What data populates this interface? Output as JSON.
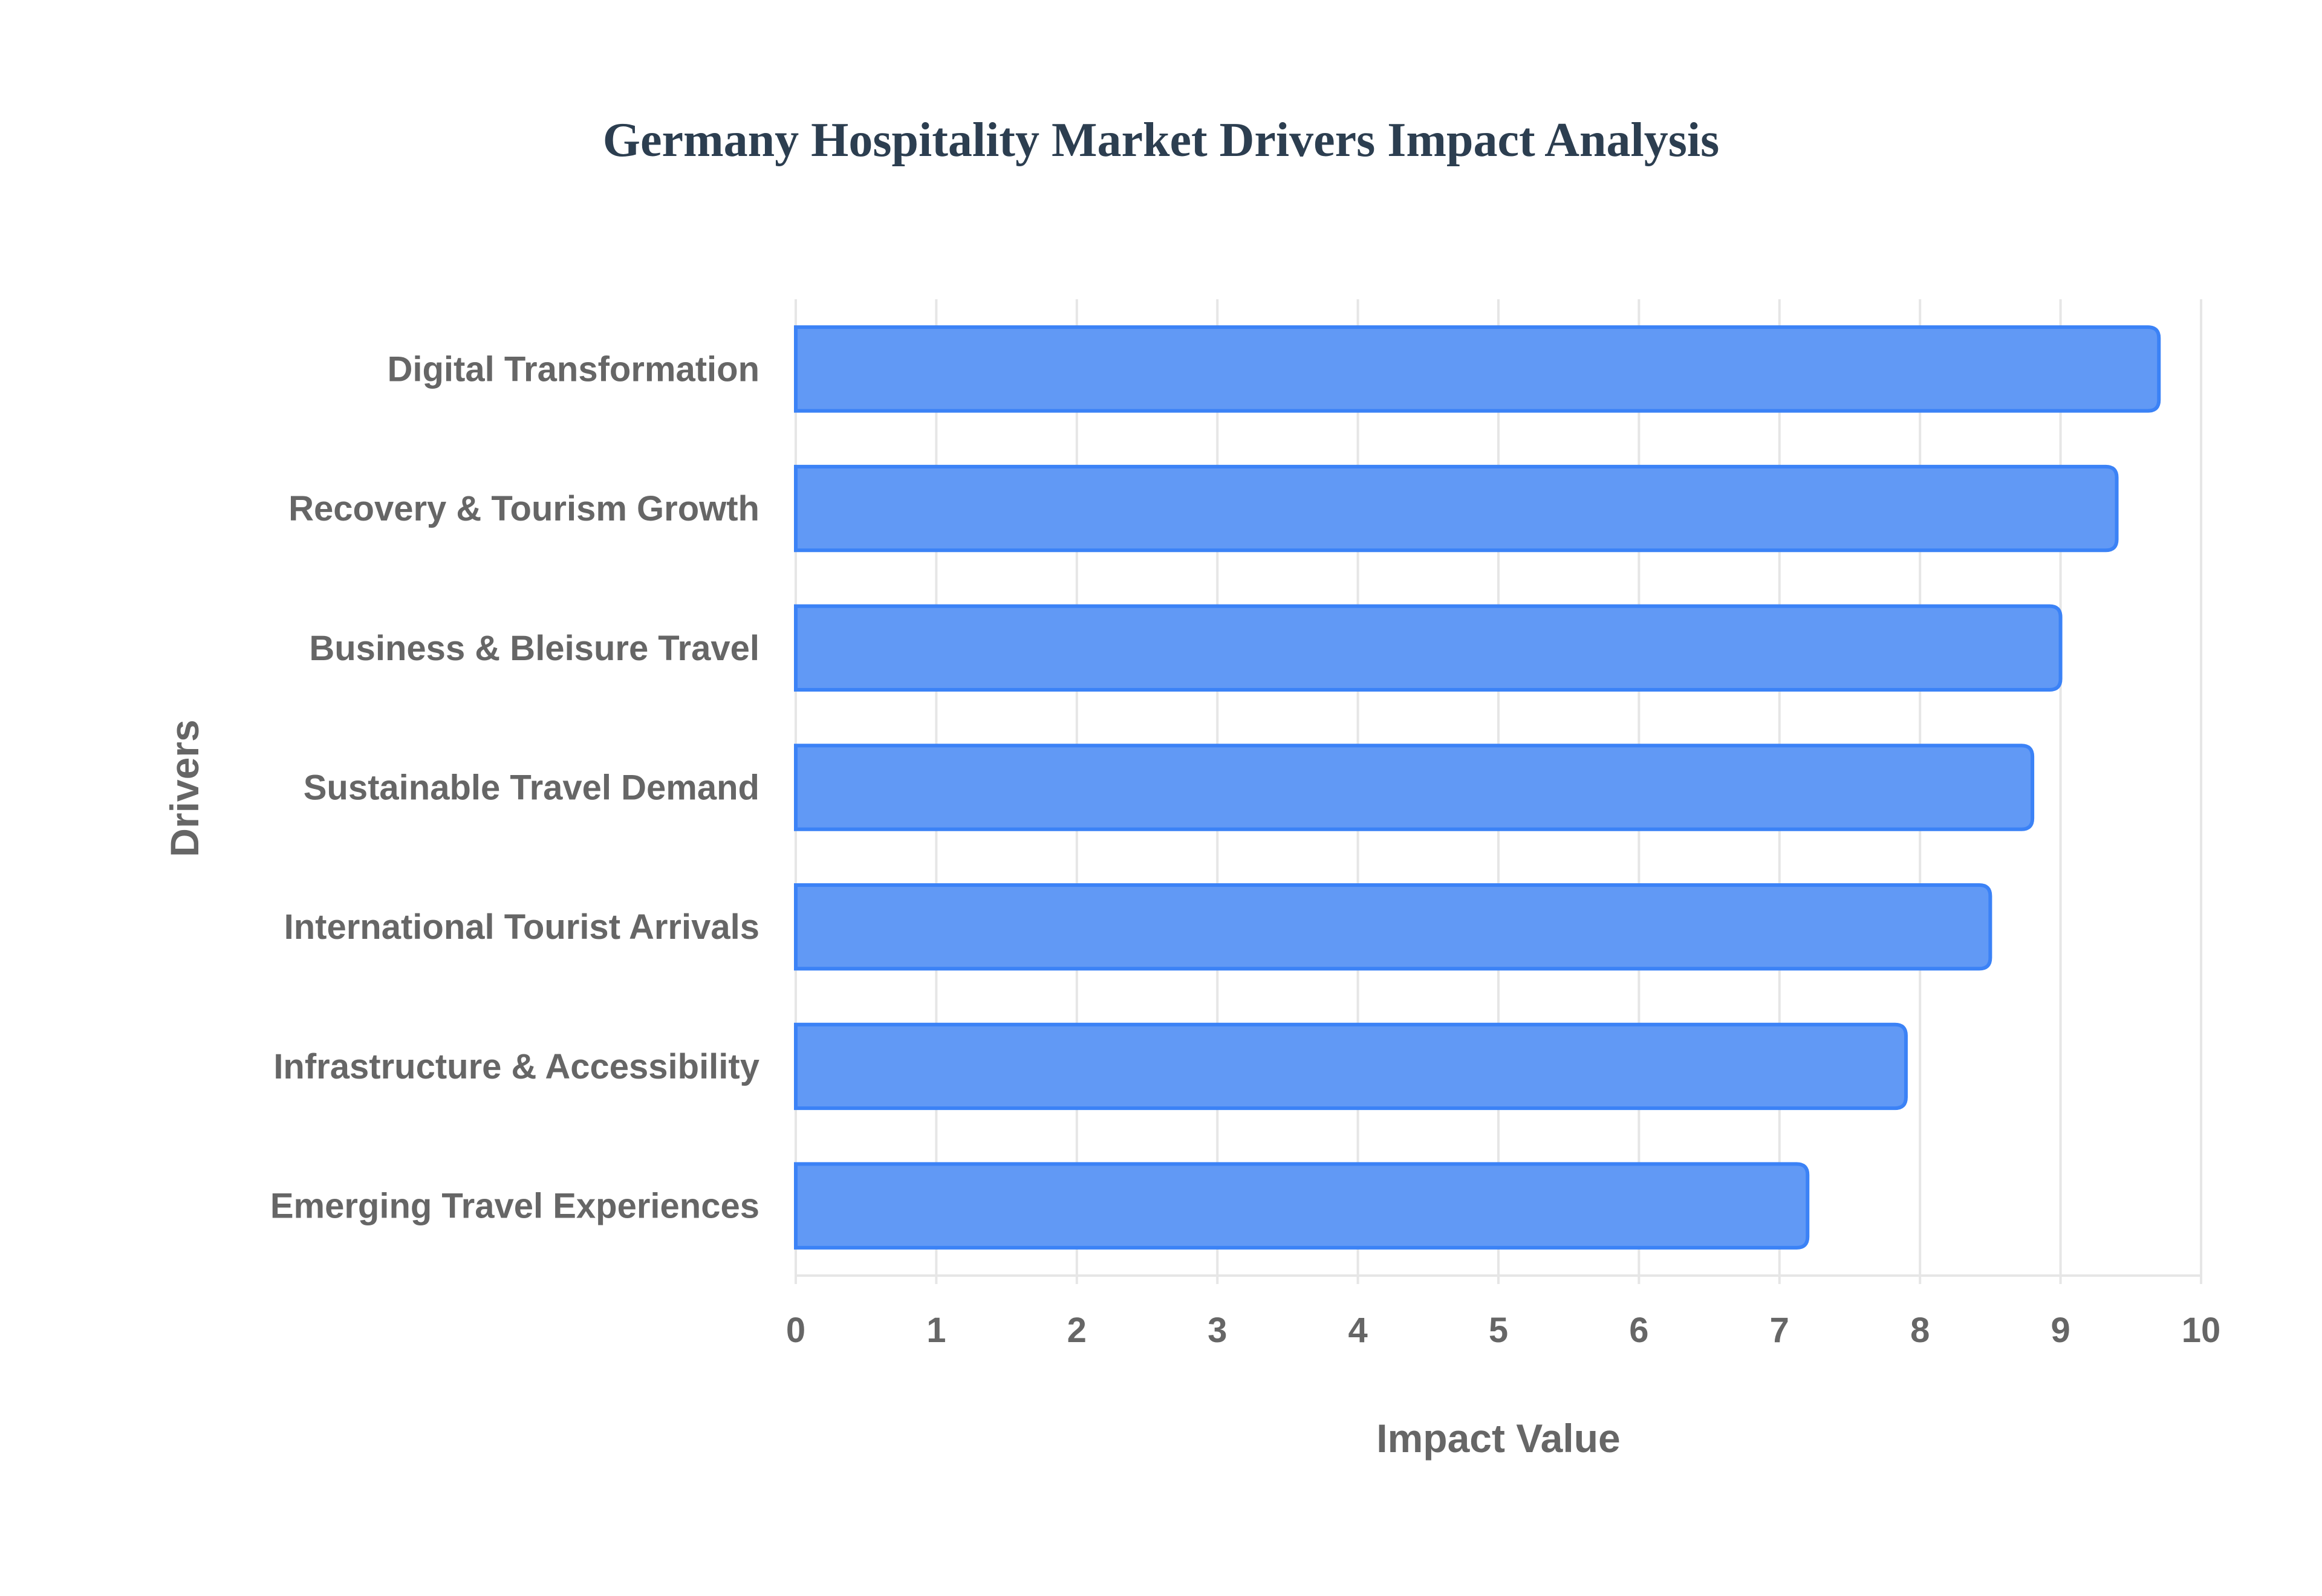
{
  "chart_data": {
    "type": "bar",
    "orientation": "horizontal",
    "title": "Germany Hospitality Market Drivers Impact Analysis",
    "xlabel": "Impact Value",
    "ylabel": "Drivers",
    "xlim": [
      0,
      10
    ],
    "xticks": [
      "0",
      "1",
      "2",
      "3",
      "4",
      "5",
      "6",
      "7",
      "8",
      "9",
      "10"
    ],
    "grid": true,
    "categories": [
      "Digital Transformation",
      "Recovery & Tourism Growth",
      "Business & Bleisure Travel",
      "Sustainable Travel Demand",
      "International Tourist Arrivals",
      "Infrastructure & Accessibility",
      "Emerging Travel Experiences"
    ],
    "values": [
      9.7,
      9.4,
      9.0,
      8.8,
      8.5,
      7.9,
      7.2
    ],
    "colors": {
      "fill": "#6199f5",
      "border": "#3b82f6",
      "grid": "#e6e6e6",
      "text": "#666666",
      "title": "#2c3e50"
    }
  }
}
